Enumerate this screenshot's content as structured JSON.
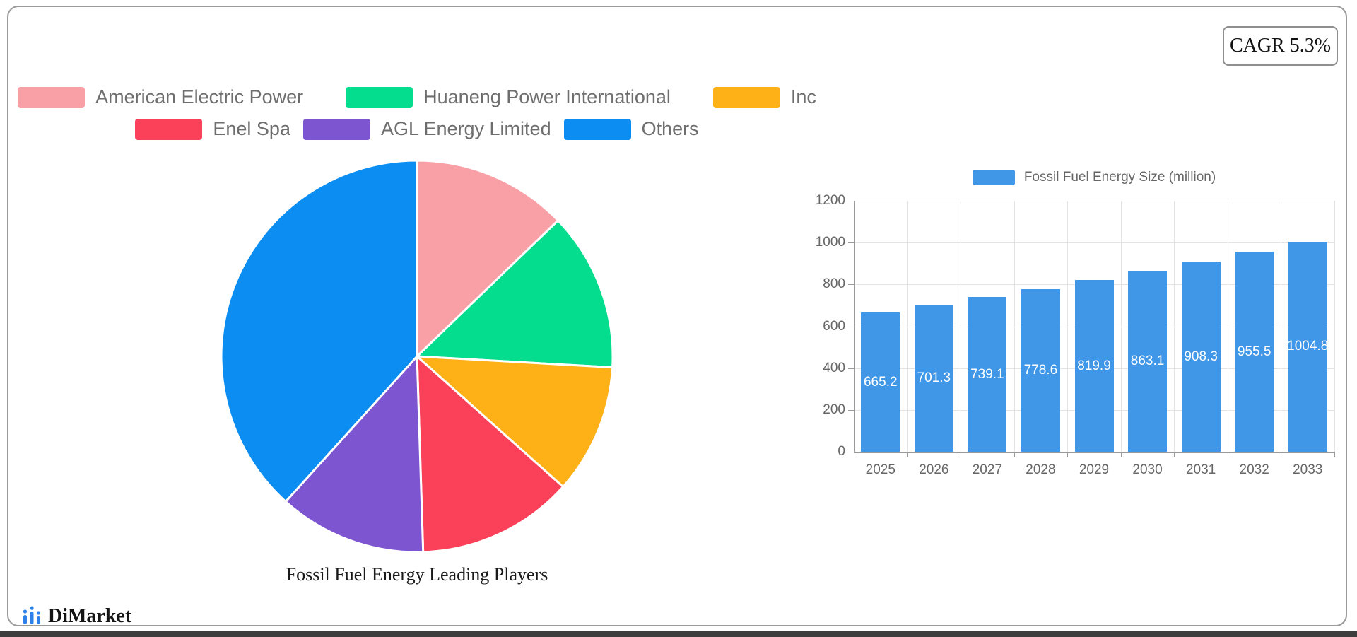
{
  "page": {
    "cagr_badge": "CAGR 5.3%",
    "logo": {
      "text": "DiMarket",
      "icon_color": "#2F80E9"
    },
    "frame": {
      "background": "#FFFFFF",
      "card_border_color": "#9B9B9B",
      "bottom_strip_color": "#3D3D3D"
    }
  },
  "chart_data": [
    {
      "type": "pie",
      "title": "Fossil Fuel Energy Leading Players",
      "labels": [
        "American Electric Power",
        "Huaneng Power International",
        "Inc",
        "Enel Spa",
        "AGL Energy Limited",
        "Others"
      ],
      "values": [
        12.8,
        13.1,
        10.7,
        12.9,
        12.2,
        38.3
      ],
      "unit": "percent (estimated from slice angles)",
      "colors": [
        "#F8A0A6",
        "#04DD8E",
        "#FDB117",
        "#FA4159",
        "#7D55D1",
        "#0C8DF2"
      ],
      "start_angle_deg": 0,
      "direction": "clockwise",
      "slice_border_color": "#FFFFFF",
      "legend_position": "top",
      "legend_layout_rows": [
        [
          0,
          1,
          2
        ],
        [
          3,
          4,
          5
        ]
      ],
      "legend_text_color": "#6E6E6E"
    },
    {
      "type": "bar",
      "legend": "Fossil Fuel Energy Size (million)",
      "categories": [
        "2025",
        "2026",
        "2027",
        "2028",
        "2029",
        "2030",
        "2031",
        "2032",
        "2033"
      ],
      "series": [
        {
          "name": "Fossil Fuel Energy Size (million)",
          "values": [
            665.2,
            701.3,
            739.1,
            778.6,
            819.9,
            863.1,
            908.3,
            955.5,
            1004.8
          ],
          "color": "#4097E8"
        }
      ],
      "ylim": [
        0,
        1200
      ],
      "yticks": [
        0,
        200,
        400,
        600,
        800,
        1000,
        1200
      ],
      "grid": true,
      "legend_position": "top",
      "value_labels_position": "inside-center",
      "value_label_color": "#FFFFFF",
      "axis_text_color": "#666666"
    }
  ]
}
